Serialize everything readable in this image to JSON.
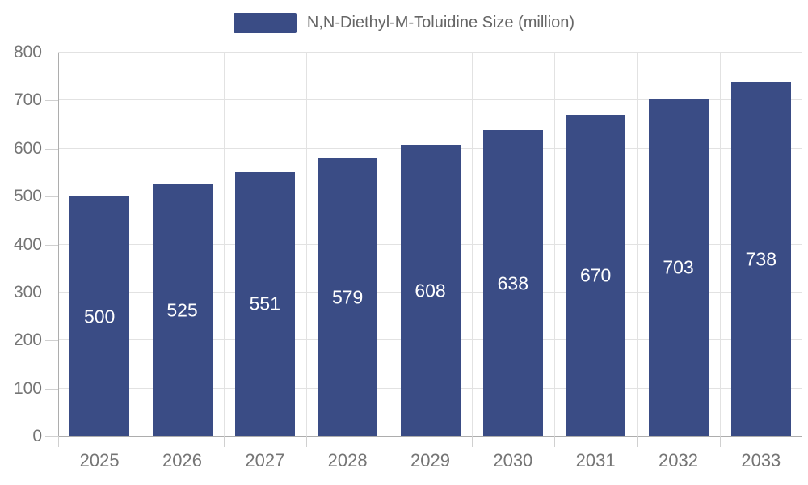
{
  "chart_data": {
    "type": "bar",
    "title": "",
    "legend": {
      "label": "N,N-Diethyl-M-Toluidine Size (million)",
      "position": "top"
    },
    "categories": [
      "2025",
      "2026",
      "2027",
      "2028",
      "2029",
      "2030",
      "2031",
      "2032",
      "2033"
    ],
    "series": [
      {
        "name": "N,N-Diethyl-M-Toluidine Size (million)",
        "values": [
          500,
          525,
          551,
          579,
          608,
          638,
          670,
          703,
          738
        ]
      }
    ],
    "xlabel": "",
    "ylabel": "",
    "ylim": [
      0,
      800
    ],
    "ytick_step": 100,
    "grid": true,
    "bar_value_labels_shown": true,
    "colors": {
      "bar": "#3a4c85",
      "bar_label": "#ffffff",
      "gridline": "#e2e2e2",
      "axis_line": "#adadad",
      "tick_mark": "#d0d0d0",
      "tick_label": "#757575",
      "legend_text": "#666666",
      "background": "#ffffff"
    }
  }
}
